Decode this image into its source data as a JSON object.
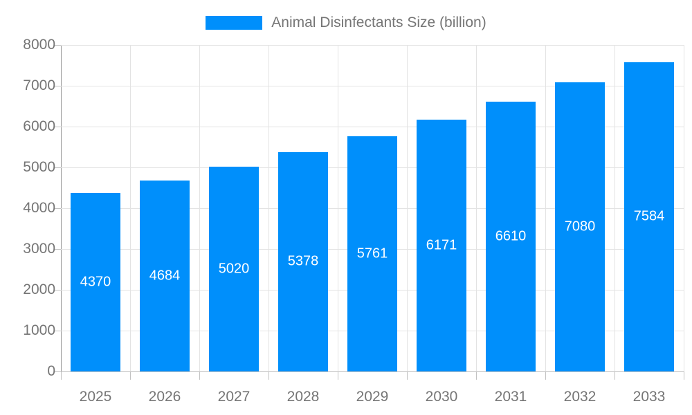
{
  "legend": {
    "label": "Animal Disinfectants Size (billion)"
  },
  "colors": {
    "bar": "#008FFB",
    "bar_label": "#ffffff",
    "axis_label": "#757575",
    "gridline": "#e3e3e3",
    "baseline": "#c2c2c2",
    "axis_line": "#9a9a9a",
    "tick": "#c2c2c2"
  },
  "chart_data": {
    "type": "bar",
    "title": "Animal Disinfectants Size (billion)",
    "series_name": "Animal Disinfectants Size (billion)",
    "categories": [
      "2025",
      "2026",
      "2027",
      "2028",
      "2029",
      "2030",
      "2031",
      "2032",
      "2033"
    ],
    "values": [
      4370,
      4684,
      5020,
      5378,
      5761,
      6171,
      6610,
      7080,
      7584
    ],
    "xlabel": "",
    "ylabel": "",
    "ylim": [
      0,
      8000
    ],
    "yticks": [
      0,
      1000,
      2000,
      3000,
      4000,
      5000,
      6000,
      7000,
      8000
    ],
    "grid": true,
    "legend_position": "top",
    "bar_label_position": "inside-center"
  }
}
